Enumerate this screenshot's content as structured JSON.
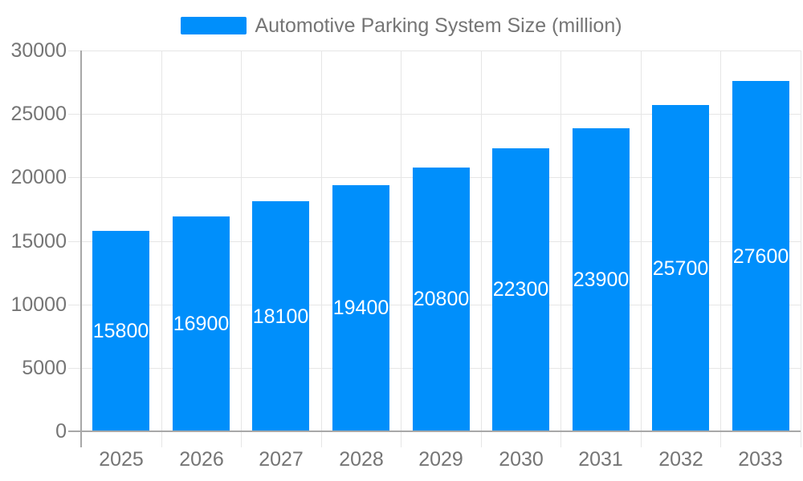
{
  "legend": {
    "label": "Automotive Parking System Size (million)"
  },
  "colors": {
    "bar": "#008FFB",
    "grid": "#e6e6e6",
    "axis": "#a8a8a8",
    "tick_label": "#757575",
    "value_label": "#ffffff",
    "background": "#ffffff"
  },
  "chart_data": {
    "type": "bar",
    "title": "",
    "xlabel": "",
    "ylabel": "",
    "categories": [
      "2025",
      "2026",
      "2027",
      "2028",
      "2029",
      "2030",
      "2031",
      "2032",
      "2033"
    ],
    "series": [
      {
        "name": "Automotive Parking System Size (million)",
        "values": [
          15800,
          16900,
          18100,
          19400,
          20800,
          22300,
          23900,
          25700,
          27600
        ]
      }
    ],
    "ylim": [
      0,
      30000
    ],
    "ytick_step": 5000,
    "yticks": [
      0,
      5000,
      10000,
      15000,
      20000,
      25000,
      30000
    ],
    "grid": true,
    "legend_position": "top",
    "bar_value_labels": true
  }
}
